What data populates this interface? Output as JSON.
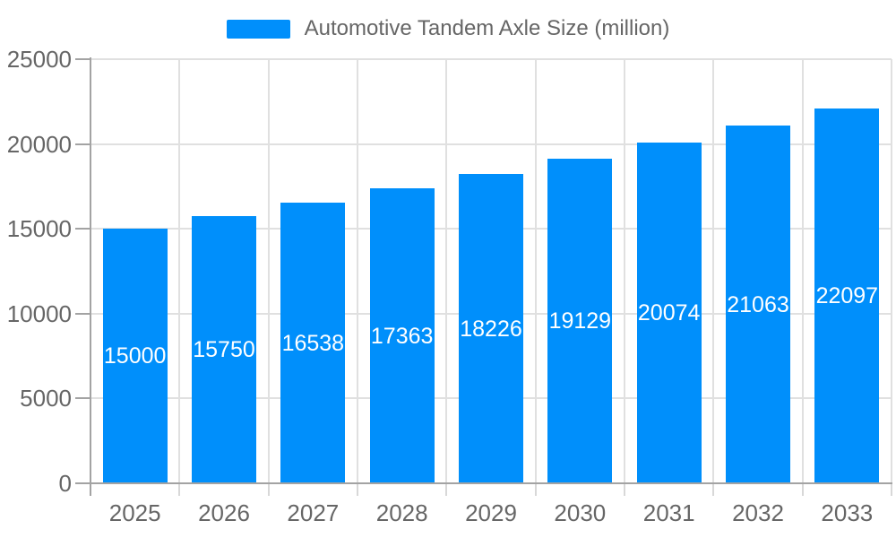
{
  "chart_data": {
    "type": "bar",
    "title": "Automotive Tandem Axle Size (million)",
    "legend_position": "top",
    "categories": [
      "2025",
      "2026",
      "2027",
      "2028",
      "2029",
      "2030",
      "2031",
      "2032",
      "2033"
    ],
    "values": [
      15000,
      15750,
      16538,
      17363,
      18226,
      19129,
      20074,
      21063,
      22097
    ],
    "data_labels_shown": true,
    "xlabel": "",
    "ylabel": "",
    "ylim": [
      0,
      25000
    ],
    "yticks": [
      0,
      5000,
      10000,
      15000,
      20000,
      25000
    ],
    "grid": true,
    "colors": {
      "bar": "#008ffb",
      "bar_label_text": "#ffffff",
      "axis_text": "#666666",
      "legend_text": "#666666",
      "grid_line": "#e0e0e0",
      "axis_line": "#a3a3a3",
      "boundary_tick": "#d8d8d8",
      "background": "#ffffff"
    }
  }
}
